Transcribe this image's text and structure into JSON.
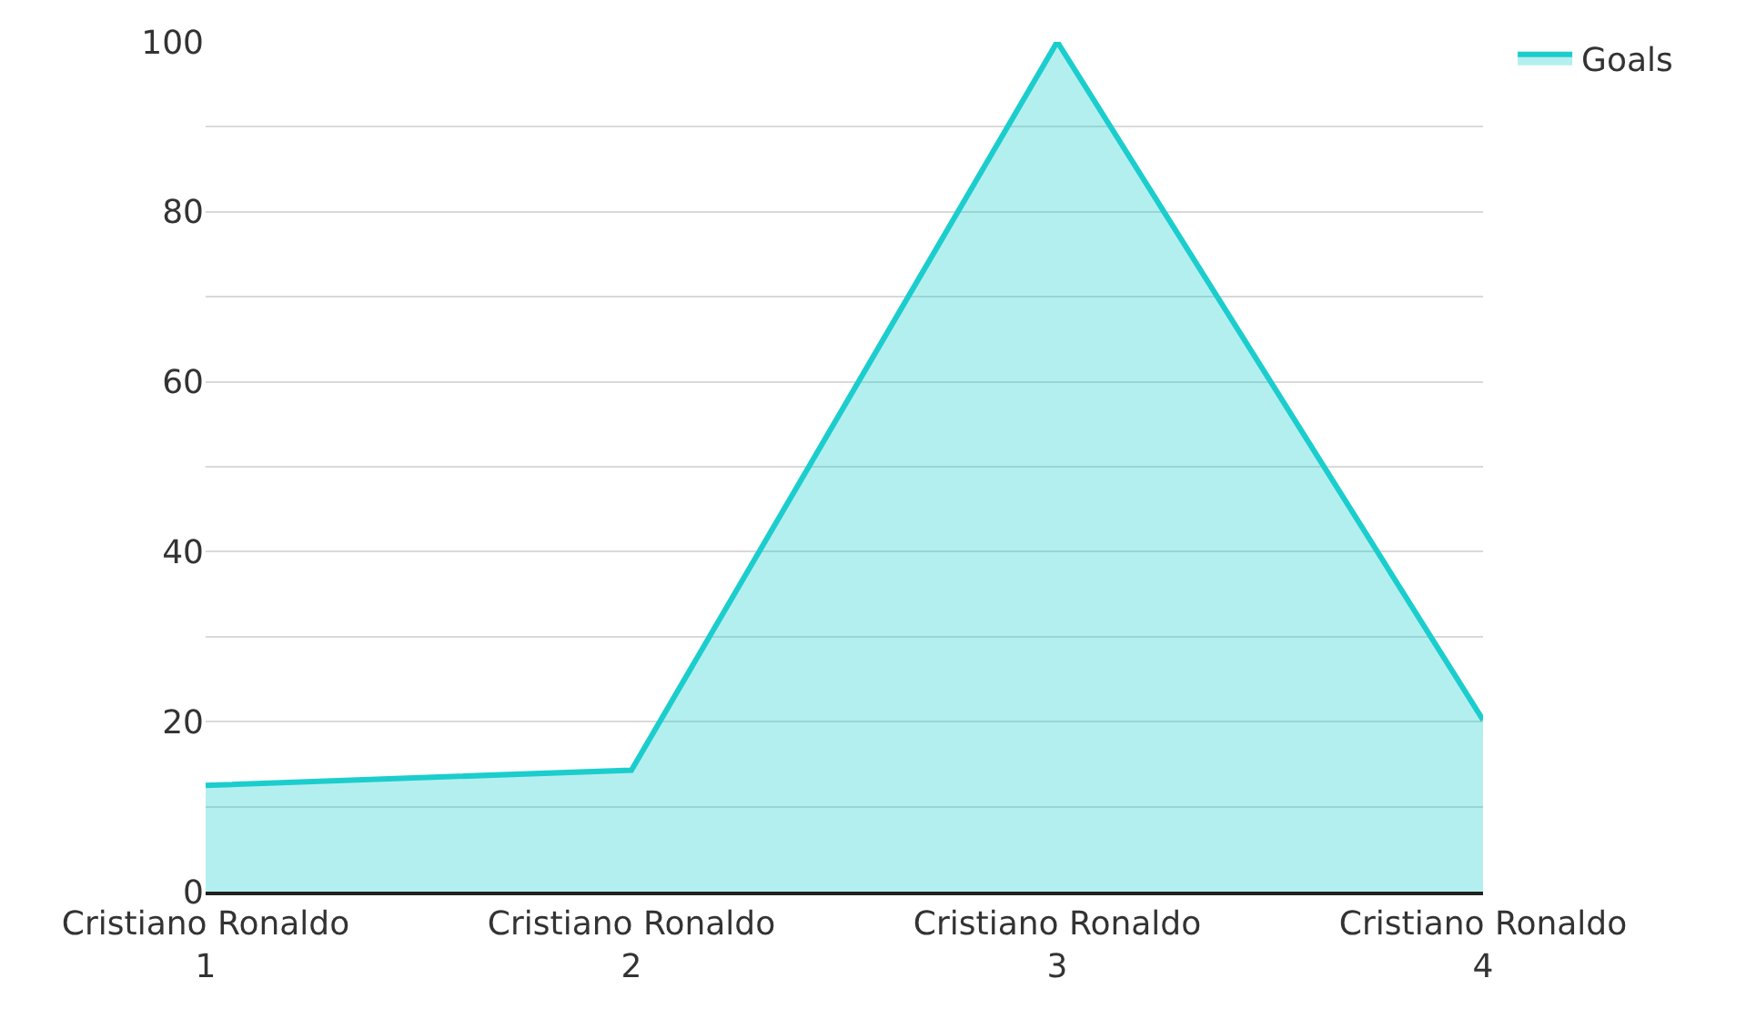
{
  "chart_data": {
    "type": "area",
    "categories": [
      "Cristiano Ronaldo 1",
      "Cristiano Ronaldo 2",
      "Cristiano Ronaldo 3",
      "Cristiano Ronaldo 4"
    ],
    "series": [
      {
        "name": "Goals",
        "color": "#1ccdcd",
        "values": [
          12.5,
          14.3,
          100,
          20.2
        ]
      }
    ],
    "ylim": [
      0,
      100
    ],
    "yticks": [
      0,
      {
        "value": 10,
        "label": null
      },
      20,
      {
        "value": 30,
        "label": null
      },
      40,
      {
        "value": 50,
        "label": null
      },
      60,
      {
        "value": 70,
        "label": null
      },
      80,
      {
        "value": 90,
        "label": null
      },
      100
    ],
    "grid": "y",
    "legend": "top right",
    "marker": "none",
    "line_style": "solid"
  }
}
